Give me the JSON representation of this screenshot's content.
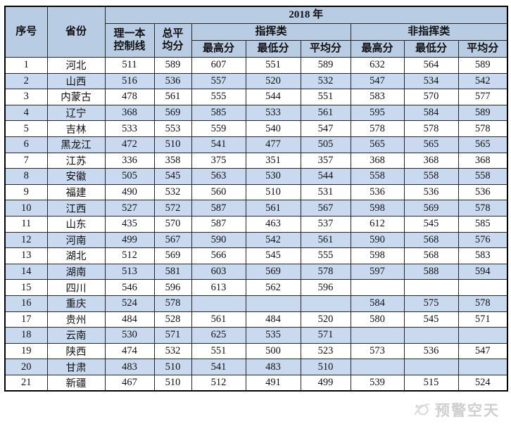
{
  "table": {
    "year_header": "2018 年",
    "col_serial": "序号",
    "col_province": "省份",
    "col_control_line": [
      "理一本",
      "控制线"
    ],
    "col_total_avg": [
      "总平",
      "均分"
    ],
    "group_command": "指挥类",
    "group_noncommand": "非指挥类",
    "sub_max": "最高分",
    "sub_min": "最低分",
    "sub_avg": "平均分",
    "rows": [
      {
        "no": "1",
        "province": "河北",
        "scores": [
          "511",
          "589",
          "607",
          "551",
          "589",
          "632",
          "564",
          "589"
        ]
      },
      {
        "no": "2",
        "province": "山西",
        "scores": [
          "516",
          "536",
          "557",
          "520",
          "532",
          "547",
          "534",
          "542"
        ]
      },
      {
        "no": "3",
        "province": "内蒙古",
        "scores": [
          "478",
          "561",
          "555",
          "544",
          "551",
          "583",
          "570",
          "577"
        ]
      },
      {
        "no": "4",
        "province": "辽宁",
        "scores": [
          "368",
          "569",
          "585",
          "533",
          "561",
          "595",
          "584",
          "589"
        ]
      },
      {
        "no": "5",
        "province": "吉林",
        "scores": [
          "533",
          "553",
          "559",
          "540",
          "547",
          "578",
          "578",
          "578"
        ]
      },
      {
        "no": "6",
        "province": "黑龙江",
        "scores": [
          "472",
          "510",
          "541",
          "477",
          "505",
          "565",
          "565",
          "565"
        ]
      },
      {
        "no": "7",
        "province": "江苏",
        "scores": [
          "336",
          "358",
          "375",
          "351",
          "357",
          "368",
          "368",
          "368"
        ]
      },
      {
        "no": "8",
        "province": "安徽",
        "scores": [
          "505",
          "545",
          "563",
          "530",
          "544",
          "558",
          "558",
          "558"
        ]
      },
      {
        "no": "9",
        "province": "福建",
        "scores": [
          "490",
          "532",
          "560",
          "510",
          "531",
          "536",
          "536",
          "536"
        ]
      },
      {
        "no": "10",
        "province": "江西",
        "scores": [
          "527",
          "572",
          "587",
          "561",
          "567",
          "598",
          "569",
          "578"
        ]
      },
      {
        "no": "11",
        "province": "山东",
        "scores": [
          "435",
          "570",
          "587",
          "463",
          "537",
          "612",
          "545",
          "585"
        ]
      },
      {
        "no": "12",
        "province": "河南",
        "scores": [
          "499",
          "567",
          "590",
          "542",
          "561",
          "590",
          "568",
          "576"
        ]
      },
      {
        "no": "13",
        "province": "湖北",
        "scores": [
          "512",
          "569",
          "566",
          "545",
          "555",
          "598",
          "568",
          "583"
        ]
      },
      {
        "no": "14",
        "province": "湖南",
        "scores": [
          "513",
          "581",
          "603",
          "569",
          "578",
          "597",
          "588",
          "594"
        ]
      },
      {
        "no": "15",
        "province": "四川",
        "scores": [
          "546",
          "596",
          "613",
          "562",
          "596",
          "",
          "",
          ""
        ]
      },
      {
        "no": "16",
        "province": "重庆",
        "scores": [
          "524",
          "578",
          "",
          "",
          "",
          "584",
          "575",
          "578"
        ]
      },
      {
        "no": "17",
        "province": "贵州",
        "scores": [
          "484",
          "528",
          "561",
          "484",
          "520",
          "580",
          "545",
          "571"
        ]
      },
      {
        "no": "18",
        "province": "云南",
        "scores": [
          "530",
          "571",
          "625",
          "535",
          "571",
          "",
          "",
          ""
        ]
      },
      {
        "no": "19",
        "province": "陕西",
        "scores": [
          "474",
          "532",
          "551",
          "500",
          "523",
          "573",
          "536",
          "547"
        ]
      },
      {
        "no": "20",
        "province": "甘肃",
        "scores": [
          "483",
          "510",
          "541",
          "483",
          "510",
          "",
          "",
          ""
        ]
      },
      {
        "no": "21",
        "province": "新疆",
        "scores": [
          "467",
          "510",
          "512",
          "491",
          "499",
          "539",
          "515",
          "524"
        ]
      }
    ]
  },
  "watermark": {
    "text": "预警空天"
  },
  "colors": {
    "header_bg": "#b8cce4",
    "stripe_bg": "#c9daf0",
    "border": "#262626",
    "watermark_text": "#cfcfcf"
  }
}
